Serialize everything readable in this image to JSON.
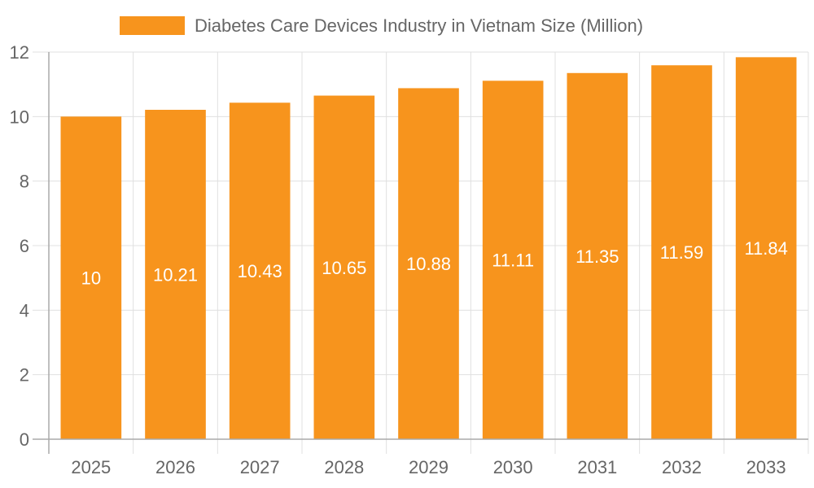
{
  "chart_data": {
    "type": "bar",
    "title": "",
    "xlabel": "",
    "ylabel": "",
    "categories": [
      "2025",
      "2026",
      "2027",
      "2028",
      "2029",
      "2030",
      "2031",
      "2032",
      "2033"
    ],
    "series": [
      {
        "name": "Diabetes Care Devices Industry in Vietnam Size (Million)",
        "values": [
          10,
          10.21,
          10.43,
          10.65,
          10.88,
          11.11,
          11.35,
          11.59,
          11.84
        ],
        "color": "#f7941d"
      }
    ],
    "data_labels": [
      "10",
      "10.21",
      "10.43",
      "10.65",
      "10.88",
      "11.11",
      "11.35",
      "11.59",
      "11.84"
    ],
    "ylim": [
      0,
      12
    ],
    "yticks": [
      "0",
      "2",
      "4",
      "6",
      "8",
      "10",
      "12"
    ],
    "grid": true,
    "legend_position": "top"
  }
}
